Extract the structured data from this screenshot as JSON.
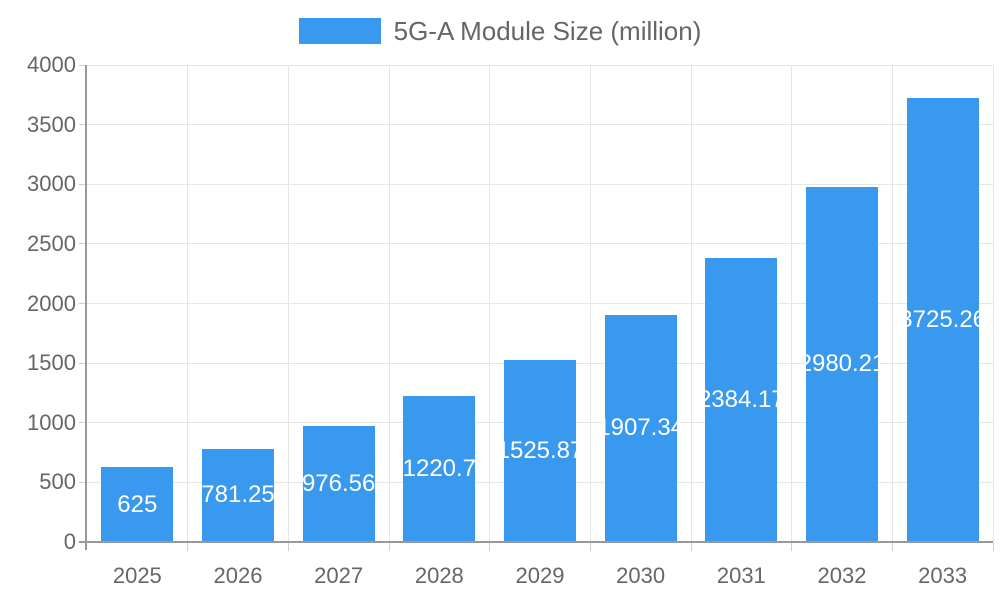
{
  "legend": {
    "label": "5G-A Module Size (million)",
    "swatch_color": "#3899EF"
  },
  "chart_data": {
    "type": "bar",
    "title": "5G-A Module Size (million)",
    "categories": [
      "2025",
      "2026",
      "2027",
      "2028",
      "2029",
      "2030",
      "2031",
      "2032",
      "2033"
    ],
    "series": [
      {
        "name": "5G-A Module Size (million)",
        "values": [
          625,
          781.25,
          976.56,
          1220.7,
          1525.87,
          1907.34,
          2384.17,
          2980.21,
          3725.26
        ],
        "labels": [
          "625",
          "781.25",
          "976.56",
          "1220.7",
          "1525.87",
          "1907.34",
          "2384.17",
          "2980.21",
          "3725.26"
        ]
      }
    ],
    "xlabel": "",
    "ylabel": "",
    "ylim": [
      0,
      4000
    ],
    "yticks": [
      0,
      500,
      1000,
      1500,
      2000,
      2500,
      3000,
      3500,
      4000
    ],
    "grid": true,
    "legend_position": "top",
    "colors": {
      "bar": "#3899EF",
      "value_label": "#FFFFFF",
      "axis_text": "#666666",
      "gridline": "#E6E6E6",
      "tick": "#CFCFCF",
      "axis_line": "#999999"
    }
  }
}
